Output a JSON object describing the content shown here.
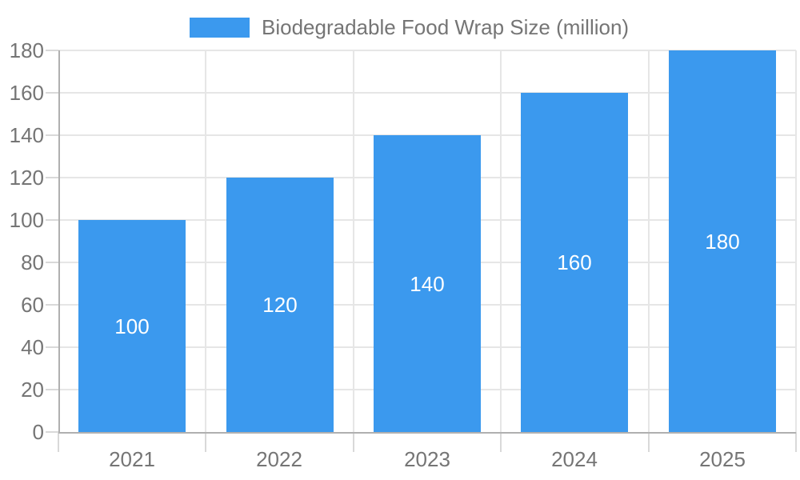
{
  "chart_data": {
    "type": "bar",
    "title": "Biodegradable Food Wrap Size (million)",
    "categories": [
      "2021",
      "2022",
      "2023",
      "2024",
      "2025"
    ],
    "values": [
      100,
      120,
      140,
      160,
      180
    ],
    "xlabel": "",
    "ylabel": "",
    "ylim": [
      0,
      180
    ],
    "ytick_step": 20,
    "yticks": [
      0,
      20,
      40,
      60,
      80,
      100,
      120,
      140,
      160,
      180
    ],
    "grid": true,
    "legend_position": "top",
    "bar_value_labels": [
      100,
      120,
      140,
      160,
      180
    ],
    "colors": {
      "bar": "#3B99EE",
      "gridline": "#e6e6e6",
      "tick": "#d9d9d9",
      "axis_line": "#b0b0b0",
      "label_text": "#757575",
      "bar_label_text": "#ffffff"
    }
  }
}
